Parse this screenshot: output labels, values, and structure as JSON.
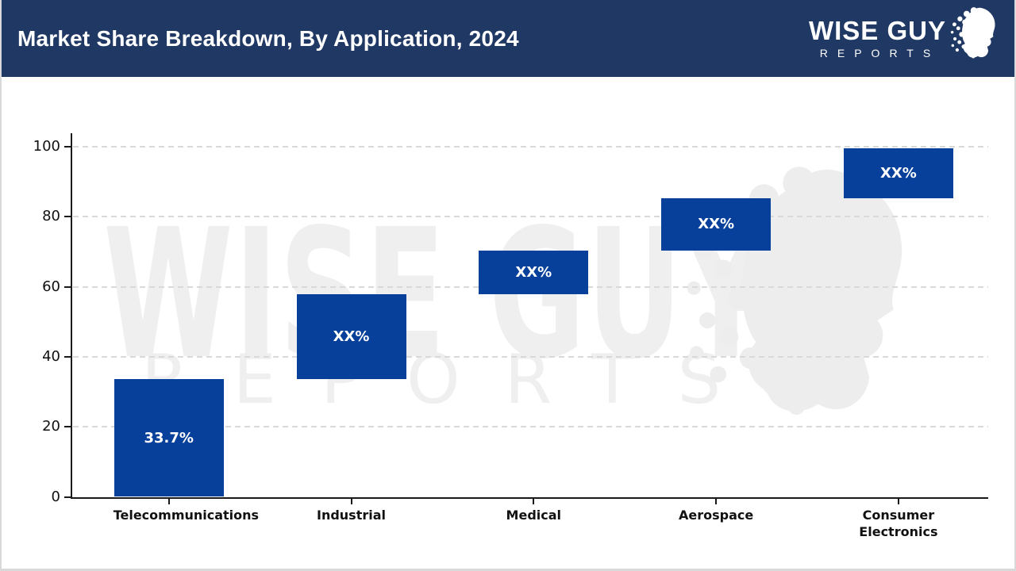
{
  "header": {
    "title": "Market Share Breakdown, By Application, 2024",
    "logo": {
      "line1": "WISE GUY",
      "line2": "REPORTS"
    }
  },
  "watermark": {
    "line1": "WISE GUY",
    "line2": "REPORTS"
  },
  "colors": {
    "header_bg": "#203864",
    "bar": "#06409a",
    "gridline": "#d9d9d9",
    "axis": "#1a1a1a",
    "bar_label_text": "#ffffff",
    "watermark": "#efefef"
  },
  "chart_data": {
    "type": "bar",
    "subtype": "waterfall",
    "title": "Market Share Breakdown, By Application, 2024",
    "xlabel": "",
    "ylabel": "",
    "categories": [
      "Telecommunications",
      "Industrial",
      "Medical",
      "Aerospace",
      "Consumer Electronics"
    ],
    "segments": [
      {
        "category": "Telecommunications",
        "start": 0,
        "end": 33.7,
        "label": "33.7%"
      },
      {
        "category": "Industrial",
        "start": 33.7,
        "end": 57.8,
        "label": "XX%"
      },
      {
        "category": "Medical",
        "start": 57.8,
        "end": 70.4,
        "label": "XX%"
      },
      {
        "category": "Aerospace",
        "start": 70.4,
        "end": 85.2,
        "label": "XX%"
      },
      {
        "category": "Consumer Electronics",
        "start": 85.2,
        "end": 99.5,
        "label": "XX%"
      }
    ],
    "ylim": [
      0,
      100
    ],
    "yticks": [
      0,
      20,
      40,
      60,
      80,
      100
    ],
    "grid": "horizontal-dashed",
    "legend": "none"
  }
}
